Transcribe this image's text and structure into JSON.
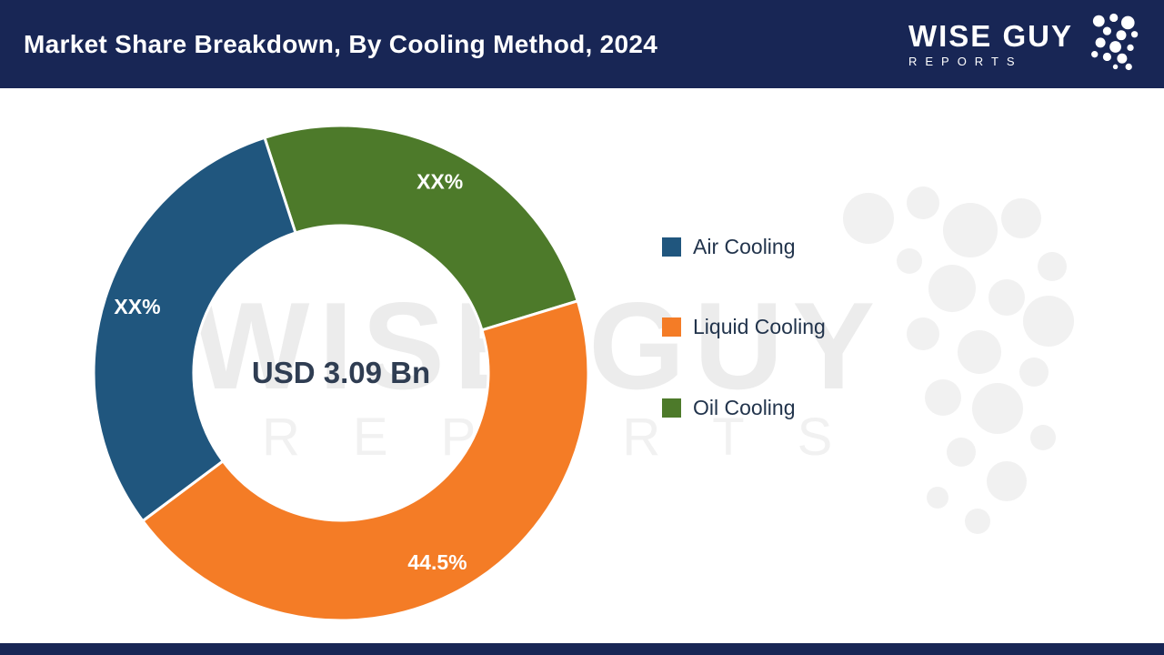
{
  "header": {
    "title": "Market Share Breakdown, By Cooling Method, 2024",
    "logo": {
      "line1": "WISE GUY",
      "line2": "REPORTS"
    }
  },
  "watermark": {
    "line1": "WISE GUY",
    "line2": "REPORTS"
  },
  "chart_data": {
    "type": "pie",
    "subtype": "donut",
    "title": "Market Share Breakdown, By Cooling Method, 2024",
    "center_label": "USD 3.09 Bn",
    "rotation_deg": -18,
    "legend_position": "right",
    "segments": [
      {
        "name": "Oil Cooling",
        "value": 25.3,
        "display_label": "XX%",
        "color": "#4d7a2a"
      },
      {
        "name": "Liquid Cooling",
        "value": 44.5,
        "display_label": "44.5%",
        "color": "#f47c26"
      },
      {
        "name": "Air Cooling",
        "value": 30.2,
        "display_label": "XX%",
        "color": "#20567e"
      }
    ],
    "legend": [
      {
        "label": "Air Cooling",
        "color": "#20567e"
      },
      {
        "label": "Liquid Cooling",
        "color": "#f47c26"
      },
      {
        "label": "Oil Cooling",
        "color": "#4d7a2a"
      }
    ]
  }
}
